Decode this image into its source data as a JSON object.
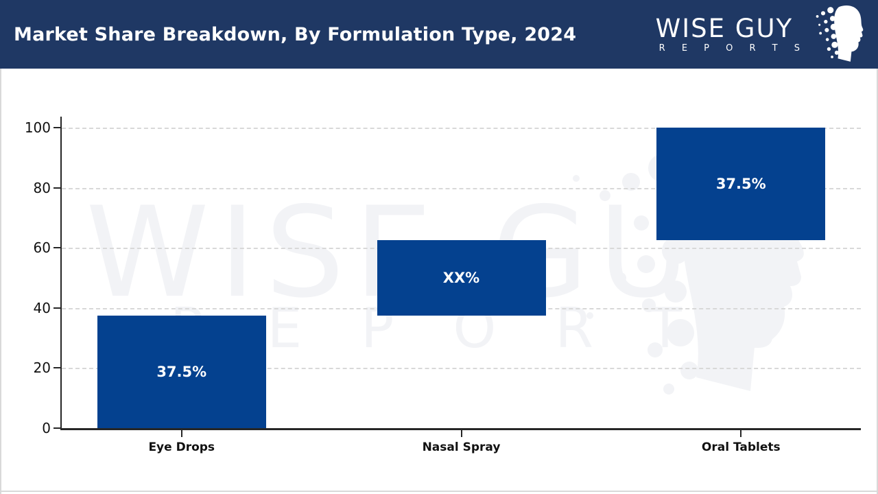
{
  "header": {
    "title": "Market Share Breakdown, By Formulation Type, 2024",
    "logo": {
      "line1": "WISE GUY",
      "line2": "R E P O R T S"
    }
  },
  "watermark": {
    "line1": "WISE GUY",
    "line2": "REPORTS"
  },
  "colors": {
    "header_bg": "#1f3864",
    "bar_blue": "#04418f",
    "axis": "#262626",
    "gridline": "#d8d8d8",
    "watermark": "#f2f3f6",
    "edge_border": "#d9d9d9",
    "value_label": "#ffffff"
  },
  "chart_data": {
    "type": "bar",
    "subtype": "waterfall-floating-bars",
    "title": "Market Share Breakdown, By Formulation Type, 2024",
    "categories": [
      "Eye Drops",
      "Nasal Spray",
      "Oral Tablets"
    ],
    "bars": [
      {
        "category": "Eye Drops",
        "start": 0,
        "end": 37.5,
        "label": "37.5%"
      },
      {
        "category": "Nasal Spray",
        "start": 37.5,
        "end": 62.5,
        "label": "XX%"
      },
      {
        "category": "Oral Tablets",
        "start": 62.5,
        "end": 100,
        "label": "37.5%"
      }
    ],
    "yticks": [
      0,
      20,
      40,
      60,
      80,
      100
    ],
    "ylim": [
      0,
      103.7
    ],
    "xlabel": "",
    "ylabel": "",
    "grid": "horizontal dashed",
    "legend": "none"
  }
}
